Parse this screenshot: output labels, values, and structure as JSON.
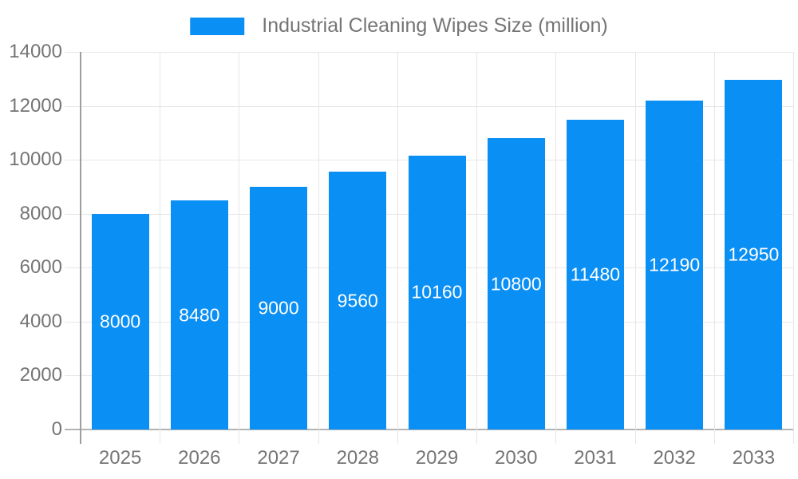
{
  "chart_data": {
    "type": "bar",
    "title": "Industrial Cleaning Wipes Size (million)",
    "legend": {
      "position": "top",
      "label": "Industrial Cleaning Wipes Size (million)"
    },
    "categories": [
      "2025",
      "2026",
      "2027",
      "2028",
      "2029",
      "2030",
      "2031",
      "2032",
      "2033"
    ],
    "values": [
      8000,
      8480,
      9000,
      9560,
      10160,
      10800,
      11480,
      12190,
      12950
    ],
    "bar_value_labels": [
      "8000",
      "8480",
      "9000",
      "9560",
      "10160",
      "10800",
      "11480",
      "12190",
      "12950"
    ],
    "y_tick_labels": [
      "0",
      "2000",
      "4000",
      "6000",
      "8000",
      "10000",
      "12000",
      "14000"
    ],
    "y_ticks": [
      0,
      2000,
      4000,
      6000,
      8000,
      10000,
      12000,
      14000
    ],
    "ylim": [
      0,
      14000
    ],
    "xlabel": "",
    "ylabel": "",
    "grid": true,
    "colors": {
      "bar": "#0a8ff5",
      "gridline": "#e6e6e6",
      "axis_line": "#9e9e9e",
      "baseline": "#b3b3b3",
      "axis_text": "#757575",
      "bar_label_text": "#ffffff",
      "background": "#ffffff"
    }
  }
}
